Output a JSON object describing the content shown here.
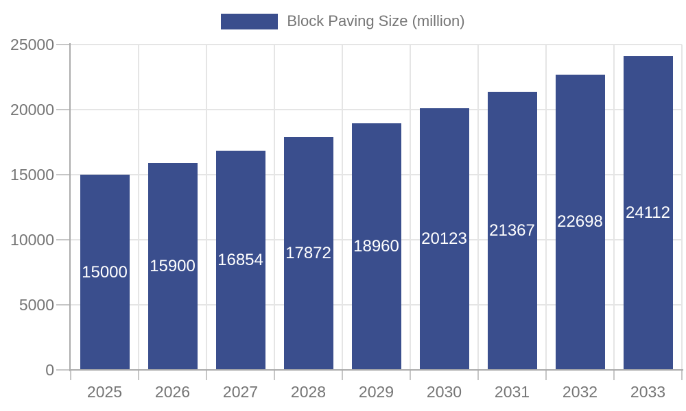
{
  "legend": {
    "label": "Block Paving Size (million)"
  },
  "colors": {
    "bar": "#3A4E8D",
    "bar_label": "#FFFFFF",
    "grid": "#E5E5E5",
    "axis_line": "#ABABAB",
    "tick_mark": "#C6C6C6",
    "tick_text": "#757575",
    "background": "#FFFFFF"
  },
  "chart_data": {
    "type": "bar",
    "title": "Block Paving Size (million)",
    "categories": [
      "2025",
      "2026",
      "2027",
      "2028",
      "2029",
      "2030",
      "2031",
      "2032",
      "2033"
    ],
    "series": [
      {
        "name": "Block Paving Size (million)",
        "values": [
          15000,
          15900,
          16854,
          17872,
          18960,
          20123,
          21367,
          22698,
          24112
        ]
      }
    ],
    "xlabel": "",
    "ylabel": "",
    "ylim": [
      0,
      25000
    ],
    "yticks": [
      0,
      5000,
      10000,
      15000,
      20000,
      25000
    ],
    "grid": true,
    "legend_position": "top-center",
    "value_label_position": "inside-center"
  }
}
